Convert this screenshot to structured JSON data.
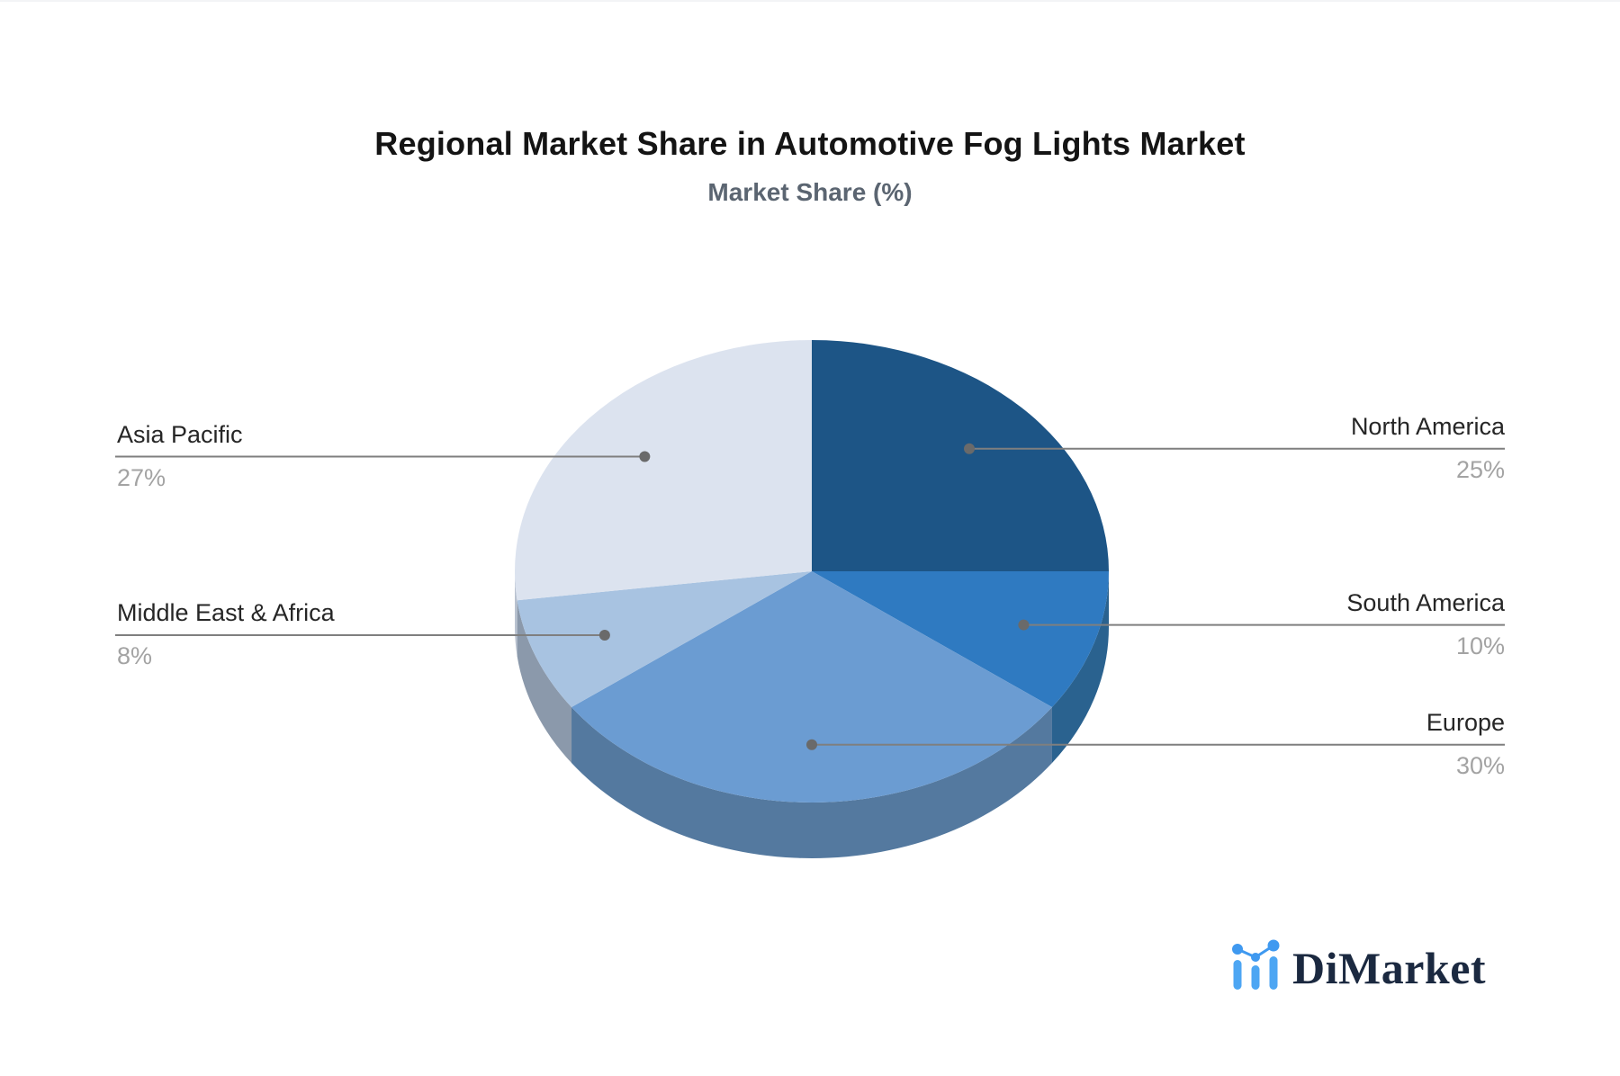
{
  "page": {
    "background": "#ffffff"
  },
  "header": {
    "title": "Regional Market Share in Automotive Fog Lights Market",
    "subtitle": "Market Share (%)",
    "title_color": "#141414",
    "subtitle_color": "#5b6571"
  },
  "chart_data": {
    "type": "pie",
    "title": "Regional Market Share in Automotive Fog Lights Market",
    "subtitle": "Market Share (%)",
    "unit": "%",
    "effect": "3d",
    "start_angle_deg": 0,
    "direction": "clockwise",
    "legend_position": "callout-labels",
    "slices": [
      {
        "label": "North America",
        "value": 25,
        "display": "25%",
        "color": "#1D5586",
        "side_color": "#1A4B77",
        "label_side": "right"
      },
      {
        "label": "South America",
        "value": 10,
        "display": "10%",
        "color": "#2F7AC1",
        "side_color": "#2A628F",
        "label_side": "right"
      },
      {
        "label": "Europe",
        "value": 30,
        "display": "30%",
        "color": "#6B9CD2",
        "side_color": "#54799F",
        "label_side": "right"
      },
      {
        "label": "Middle East & Africa",
        "value": 8,
        "display": "8%",
        "color": "#A8C3E1",
        "side_color": "#8B99AB",
        "label_side": "left"
      },
      {
        "label": "Asia Pacific",
        "value": 27,
        "display": "27%",
        "color": "#DCE3EF",
        "side_color": "#B9C2D0",
        "label_side": "left"
      }
    ],
    "callout_style": {
      "line_color": "#7f7f7f",
      "dot_color": "#6a6a6a",
      "label_color": "#262626",
      "percent_color": "#a3a3a3"
    }
  },
  "logo": {
    "text": "DiMarket",
    "text_color": "#1b2940",
    "icon": "trend-bars-logo-icon",
    "icon_bar_color": "#4DA6F3",
    "icon_dot_color": "#3F99F0"
  }
}
